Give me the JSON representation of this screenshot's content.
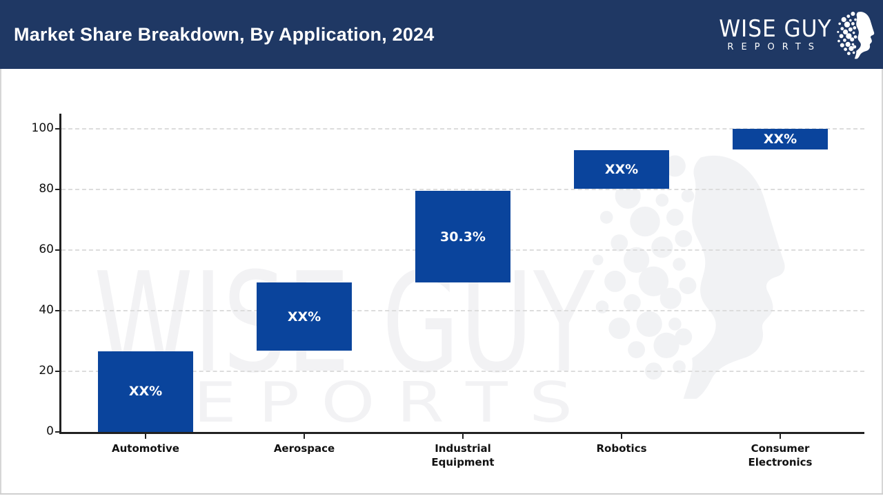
{
  "header": {
    "title": "Market Share Breakdown, By Application, 2024",
    "logo": {
      "line1": "WISE GUY",
      "line2": "REPORTS"
    }
  },
  "watermark": {
    "line1": "WISE GUY",
    "line2": "R E P O R T S"
  },
  "colors": {
    "header_bg": "#1f3864",
    "bar": "#0a449c",
    "bar_label": "#ffffff",
    "axis": "#212121",
    "grid": "#dcdcdc",
    "watermark": "#f2f2f4"
  },
  "chart_data": {
    "type": "bar",
    "subtype": "waterfall",
    "title": "Market Share Breakdown, By Application, 2024",
    "categories": [
      "Automotive",
      "Aerospace",
      "Industrial Equipment",
      "Robotics",
      "Consumer Electronics"
    ],
    "tick_labels": [
      "Automotive",
      "Aerospace",
      "Industrial\nEquipment",
      "Robotics",
      "Consumer\nElectronics"
    ],
    "segments": [
      {
        "category": "Automotive",
        "start": 0,
        "end": 26.6,
        "label": "XX%"
      },
      {
        "category": "Aerospace",
        "start": 26.8,
        "end": 49.3,
        "label": "XX%"
      },
      {
        "category": "Industrial Equipment",
        "start": 49.3,
        "end": 79.5,
        "label": "30.3%",
        "value": 30.3
      },
      {
        "category": "Robotics",
        "start": 80.2,
        "end": 93.0,
        "label": "XX%"
      },
      {
        "category": "Consumer Electronics",
        "start": 93.2,
        "end": 100.0,
        "label": "XX%"
      }
    ],
    "ylim": [
      0,
      100
    ],
    "yticks": [
      0,
      20,
      40,
      60,
      80,
      100
    ],
    "xlabel": "",
    "ylabel": "",
    "grid": "horizontal-dashed",
    "legend": "none",
    "bar_color": "#0a449c"
  }
}
